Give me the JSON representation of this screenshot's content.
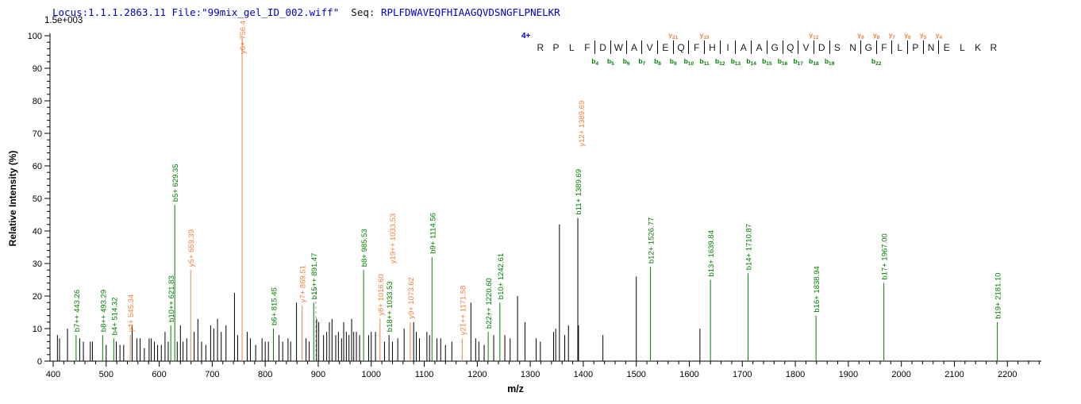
{
  "header": {
    "locus_file": "Locus:1.1.1.2863.11 File:\"99mix_gel_ID_002.wiff\"",
    "gap": "  ",
    "seq_label": "Seq: ",
    "seq_value": "RPLFDWAVEQFHIAAGQVDSNGFLPNELKR"
  },
  "scale_note": "1.5e+003",
  "colors": {
    "header_blue": "#0000CD",
    "b_ion_green": "#008000",
    "y_ion_orange": "#F08040",
    "peak_black": "#000000",
    "precursor_gray": "#9a9a9a",
    "axis_black": "#000000"
  },
  "peptide_annotation": {
    "charge_label": "4+",
    "residues": [
      {
        "aa": "R"
      },
      {
        "aa": "P"
      },
      {
        "aa": "L"
      },
      {
        "aa": "F"
      },
      {
        "aa": "D",
        "bar": true,
        "b": "b4"
      },
      {
        "aa": "W",
        "bar": true,
        "b": "b5"
      },
      {
        "aa": "A",
        "bar": true,
        "b": "b6"
      },
      {
        "aa": "V",
        "bar": true,
        "b": "b7"
      },
      {
        "aa": "E",
        "bar": true,
        "b": "b8"
      },
      {
        "aa": "Q",
        "bar": true,
        "b": "b9",
        "y": "y21"
      },
      {
        "aa": "F",
        "bar": true,
        "b": "b10"
      },
      {
        "aa": "H",
        "bar": true,
        "b": "b11",
        "y": "y19"
      },
      {
        "aa": "I",
        "bar": true,
        "b": "b12"
      },
      {
        "aa": "A",
        "bar": true,
        "b": "b13"
      },
      {
        "aa": "A",
        "bar": true,
        "b": "b14"
      },
      {
        "aa": "G",
        "bar": true,
        "b": "b15"
      },
      {
        "aa": "Q",
        "bar": true,
        "b": "b16"
      },
      {
        "aa": "V",
        "bar": true,
        "b": "b17"
      },
      {
        "aa": "D",
        "bar": true,
        "b": "b18",
        "y": "y12"
      },
      {
        "aa": "S",
        "bar": true,
        "b": "b19"
      },
      {
        "aa": "N"
      },
      {
        "aa": "G",
        "bar": true,
        "y": "y9"
      },
      {
        "aa": "F",
        "bar": true,
        "b": "b22",
        "y": "y8"
      },
      {
        "aa": "L",
        "bar": true,
        "y": "y7"
      },
      {
        "aa": "P",
        "bar": true,
        "y": "y6"
      },
      {
        "aa": "N",
        "bar": true,
        "y": "y5"
      },
      {
        "aa": "E",
        "bar": true,
        "y": "y4"
      },
      {
        "aa": "L"
      },
      {
        "aa": "K"
      },
      {
        "aa": "R"
      }
    ]
  },
  "chart_data": {
    "type": "bar",
    "subtype": "centroided-msms-spectrum",
    "title": "",
    "xlabel": "m/z",
    "ylabel": "Relative  Intensity (%)",
    "y_full_scale": "1.5e+003",
    "xlim": [
      400,
      2264
    ],
    "ylim": [
      0,
      100
    ],
    "x_major_tick_step": 100,
    "x_minor_tick_step": 20,
    "x_tick_labels": [
      400,
      500,
      600,
      700,
      800,
      900,
      1000,
      1100,
      1200,
      1300,
      1400,
      1500,
      1600,
      1700,
      1800,
      1900,
      2000,
      2100,
      2200
    ],
    "y_major_tick_step": 10,
    "y_minor_tick_step": 2,
    "grid": false,
    "legend": false,
    "precursor_marker": {
      "mz": 895.5,
      "intensity_pct": 23,
      "style": "dashed"
    },
    "labeled_peaks": [
      {
        "mz": 443.26,
        "pct": 8,
        "stick": "b",
        "labels": [
          {
            "text": "b7++ 443.26",
            "type": "b"
          }
        ]
      },
      {
        "mz": 493.29,
        "pct": 8,
        "stick": "b",
        "labels": [
          {
            "text": "b8++ 493.29",
            "type": "b"
          }
        ]
      },
      {
        "mz": 514.32,
        "pct": 7,
        "stick": "b",
        "labels": [
          {
            "text": "b4+ 514.32",
            "type": "b"
          }
        ]
      },
      {
        "mz": 545.34,
        "pct": 8,
        "stick": "y",
        "labels": [
          {
            "text": "y4+ 545.34",
            "type": "y"
          }
        ]
      },
      {
        "mz": 621.83,
        "pct": 11,
        "stick": "b",
        "labels": [
          {
            "text": "b10++ 621.83",
            "type": "b"
          }
        ]
      },
      {
        "mz": 629.35,
        "pct": 48,
        "stick": "b",
        "labels": [
          {
            "text": "b5+ 629.35",
            "type": "b"
          }
        ]
      },
      {
        "mz": 659.39,
        "pct": 28,
        "stick": "y",
        "labels": [
          {
            "text": "y5+ 659.39",
            "type": "y"
          }
        ]
      },
      {
        "mz": 756.4,
        "pct": 100,
        "stick": "y",
        "labels": [
          {
            "text": "y6+ 756.4",
            "type": "y"
          }
        ]
      },
      {
        "mz": 815.45,
        "pct": 10,
        "stick": "b",
        "labels": [
          {
            "text": "b6+ 815.45",
            "type": "b"
          }
        ]
      },
      {
        "mz": 869.51,
        "pct": 17,
        "stick": "y",
        "labels": [
          {
            "text": "y7+ 869.51",
            "type": "y"
          }
        ]
      },
      {
        "mz": 891.47,
        "pct": 18,
        "stick": "b",
        "labels": [
          {
            "text": "b15++ 891.47",
            "type": "b"
          }
        ]
      },
      {
        "mz": 985.53,
        "pct": 28,
        "stick": "b",
        "labels": [
          {
            "text": "b8+ 985.53",
            "type": "b"
          }
        ]
      },
      {
        "mz": 1016.6,
        "pct": 13,
        "stick": "y",
        "labels": [
          {
            "text": "y8+ 1016.60",
            "type": "y"
          }
        ]
      },
      {
        "mz": 1033.53,
        "pct": 8,
        "stick": "black",
        "labels": [
          {
            "text": "b18++ 1033.53",
            "type": "b"
          },
          {
            "text": "y19++ 1033.53",
            "type": "y"
          }
        ]
      },
      {
        "mz": 1073.62,
        "pct": 12,
        "stick": "y",
        "labels": [
          {
            "text": "y9+ 1073.62",
            "type": "y"
          }
        ]
      },
      {
        "mz": 1114.56,
        "pct": 32,
        "stick": "b",
        "labels": [
          {
            "text": "b9+ 1114.56",
            "type": "b"
          }
        ]
      },
      {
        "mz": 1171.58,
        "pct": 7,
        "stick": "y",
        "labels": [
          {
            "text": "y21++ 1171.58",
            "type": "y"
          }
        ]
      },
      {
        "mz": 1220.6,
        "pct": 9,
        "stick": "b",
        "labels": [
          {
            "text": "b22++ 1220.60",
            "type": "b"
          }
        ]
      },
      {
        "mz": 1242.61,
        "pct": 18,
        "stick": "b",
        "labels": [
          {
            "text": "b10+ 1242.61",
            "type": "b"
          }
        ]
      },
      {
        "mz": 1389.69,
        "pct": 44,
        "stick": "black",
        "labels": [
          {
            "text": "b11+ 1389.69",
            "type": "b"
          },
          {
            "text": "y12+ 1389.69",
            "type": "y"
          }
        ]
      },
      {
        "mz": 1526.77,
        "pct": 29,
        "stick": "b",
        "labels": [
          {
            "text": "b12+ 1526.77",
            "type": "b"
          }
        ]
      },
      {
        "mz": 1639.84,
        "pct": 25,
        "stick": "b",
        "labels": [
          {
            "text": "b13+ 1639.84",
            "type": "b"
          }
        ]
      },
      {
        "mz": 1710.87,
        "pct": 27,
        "stick": "b",
        "labels": [
          {
            "text": "b14+ 1710.87",
            "type": "b"
          }
        ]
      },
      {
        "mz": 1838.94,
        "pct": 14,
        "stick": "b",
        "labels": [
          {
            "text": "b16+ 1838.94",
            "type": "b"
          }
        ]
      },
      {
        "mz": 1967.0,
        "pct": 24,
        "stick": "b",
        "labels": [
          {
            "text": "b17+ 1967.00",
            "type": "b"
          }
        ]
      },
      {
        "mz": 2181.1,
        "pct": 12,
        "stick": "b",
        "labels": [
          {
            "text": "b19+ 2181.10",
            "type": "b"
          }
        ]
      }
    ],
    "unlabeled_peaks": [
      [
        408,
        8
      ],
      [
        412,
        7
      ],
      [
        427,
        10
      ],
      [
        450,
        7
      ],
      [
        457,
        6
      ],
      [
        470,
        6
      ],
      [
        474,
        6
      ],
      [
        500,
        5
      ],
      [
        519,
        6
      ],
      [
        526,
        5
      ],
      [
        533,
        5
      ],
      [
        549,
        11
      ],
      [
        558,
        7
      ],
      [
        564,
        7
      ],
      [
        572,
        4
      ],
      [
        581,
        7
      ],
      [
        585,
        7
      ],
      [
        591,
        6
      ],
      [
        597,
        5
      ],
      [
        604,
        5
      ],
      [
        611,
        9
      ],
      [
        617,
        6
      ],
      [
        634,
        6
      ],
      [
        640,
        11
      ],
      [
        645,
        6
      ],
      [
        652,
        7
      ],
      [
        666,
        9
      ],
      [
        673,
        13
      ],
      [
        680,
        6
      ],
      [
        688,
        5
      ],
      [
        697,
        11
      ],
      [
        703,
        10
      ],
      [
        710,
        13
      ],
      [
        717,
        9
      ],
      [
        726,
        11
      ],
      [
        742,
        21
      ],
      [
        748,
        8
      ],
      [
        766,
        9
      ],
      [
        772,
        7
      ],
      [
        782,
        5
      ],
      [
        794,
        7
      ],
      [
        800,
        6
      ],
      [
        806,
        6
      ],
      [
        826,
        8
      ],
      [
        833,
        6
      ],
      [
        843,
        7
      ],
      [
        848,
        6
      ],
      [
        859,
        18
      ],
      [
        877,
        7
      ],
      [
        883,
        6
      ],
      [
        897,
        13
      ],
      [
        901,
        12
      ],
      [
        910,
        8
      ],
      [
        916,
        9
      ],
      [
        921,
        12
      ],
      [
        926,
        13
      ],
      [
        933,
        8
      ],
      [
        938,
        9
      ],
      [
        944,
        7
      ],
      [
        948,
        12
      ],
      [
        953,
        9
      ],
      [
        958,
        8
      ],
      [
        963,
        13
      ],
      [
        967,
        9
      ],
      [
        972,
        9
      ],
      [
        978,
        8
      ],
      [
        995,
        8
      ],
      [
        1000,
        9
      ],
      [
        1008,
        9
      ],
      [
        1025,
        6
      ],
      [
        1040,
        6
      ],
      [
        1050,
        7
      ],
      [
        1062,
        10
      ],
      [
        1080,
        12
      ],
      [
        1085,
        9
      ],
      [
        1091,
        7
      ],
      [
        1105,
        9
      ],
      [
        1110,
        8
      ],
      [
        1124,
        7
      ],
      [
        1131,
        7
      ],
      [
        1140,
        5
      ],
      [
        1152,
        6
      ],
      [
        1188,
        18
      ],
      [
        1197,
        7
      ],
      [
        1203,
        6
      ],
      [
        1213,
        5
      ],
      [
        1231,
        8
      ],
      [
        1252,
        8
      ],
      [
        1262,
        7
      ],
      [
        1276,
        20
      ],
      [
        1290,
        12
      ],
      [
        1311,
        7
      ],
      [
        1319,
        6
      ],
      [
        1344,
        9
      ],
      [
        1348,
        10
      ],
      [
        1355,
        42
      ],
      [
        1365,
        8
      ],
      [
        1372,
        11
      ],
      [
        1391,
        11
      ],
      [
        1437,
        8
      ],
      [
        1500,
        26
      ],
      [
        1620,
        10
      ]
    ]
  }
}
